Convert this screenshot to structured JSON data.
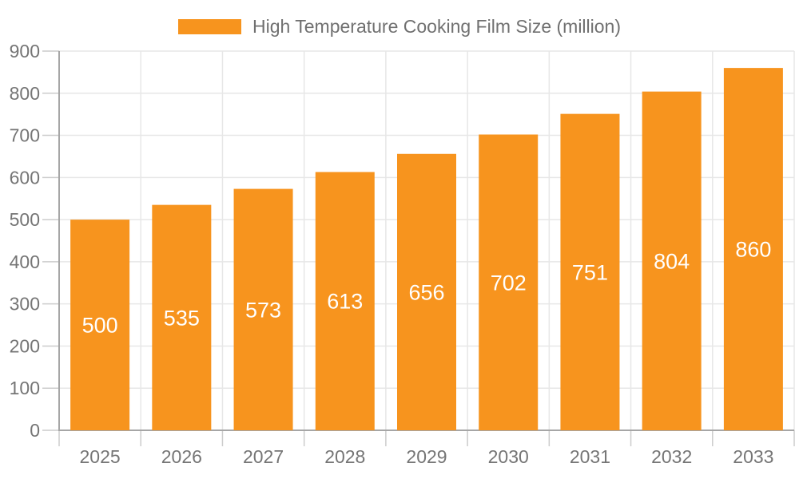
{
  "legend": {
    "label": "High Temperature Cooking Film Size (million)"
  },
  "chart_data": {
    "type": "bar",
    "title": "High Temperature Cooking Film Size (million)",
    "categories": [
      "2025",
      "2026",
      "2027",
      "2028",
      "2029",
      "2030",
      "2031",
      "2032",
      "2033"
    ],
    "values": [
      500,
      535,
      573,
      613,
      656,
      702,
      751,
      804,
      860
    ],
    "xlabel": "",
    "ylabel": "",
    "ylim": [
      0,
      900
    ],
    "ytick_step": 100,
    "grid": true,
    "legend_position": "top",
    "value_labels": "inside-center",
    "colors": {
      "bar": "#F7941E",
      "grid": "#e7e7e7",
      "axis": "#a6a6a6",
      "tick": "#cccccc",
      "axis_label": "#757575",
      "value_label": "#ffffff",
      "legend_text": "#707070"
    }
  }
}
